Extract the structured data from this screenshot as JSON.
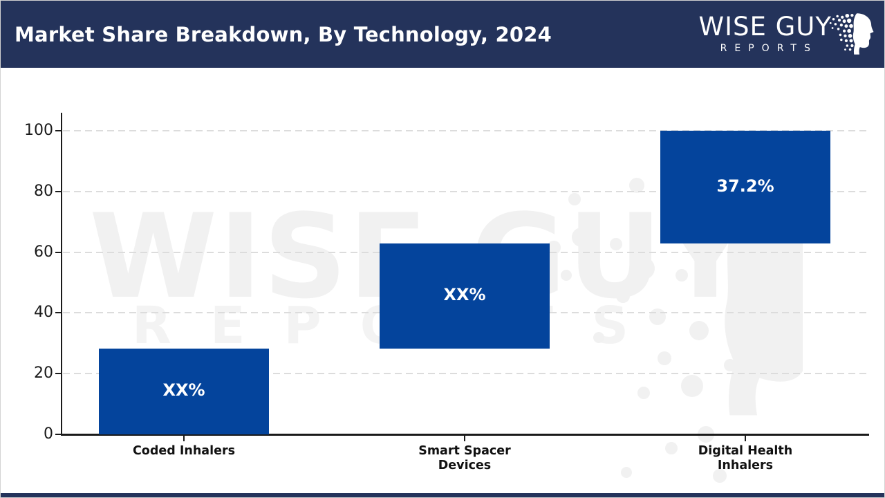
{
  "header": {
    "title": "Market Share Breakdown, By Technology, 2024",
    "bg_color": "#24335B",
    "logo": {
      "line1": "WISE GUY",
      "line2": "REPORTS"
    }
  },
  "watermark": {
    "line1": "WISE GUY",
    "line2": "REPORTS"
  },
  "chart_data": {
    "type": "bar",
    "subtype": "waterfall-breakdown",
    "title": "Market Share Breakdown, By Technology, 2024",
    "categories": [
      {
        "name": "Coded Inhalers",
        "lines": [
          "Coded Inhalers"
        ]
      },
      {
        "name": "Smart Spacer Devices",
        "lines": [
          "Smart Spacer",
          "Devices"
        ]
      },
      {
        "name": "Digital Health Inhalers",
        "lines": [
          "Digital Health",
          "Inhalers"
        ]
      }
    ],
    "segments": [
      {
        "category": "Coded Inhalers",
        "start": 0,
        "end": 28.2,
        "label": "XX%"
      },
      {
        "category": "Smart Spacer Devices",
        "start": 28.2,
        "end": 62.8,
        "label": "XX%"
      },
      {
        "category": "Digital Health Inhalers",
        "start": 62.8,
        "end": 100,
        "label": "37.2%"
      }
    ],
    "xlabel": "",
    "ylabel": "",
    "ylim": [
      0,
      105
    ],
    "yticks": [
      0,
      20,
      40,
      60,
      80,
      100
    ],
    "grid": "horizontal-dashed",
    "legend": "none",
    "bar_color": "#04449C",
    "value_label_color": "#ffffff",
    "axis_color": "#1a1a1a",
    "gridline_color": "#dcdcdc"
  }
}
